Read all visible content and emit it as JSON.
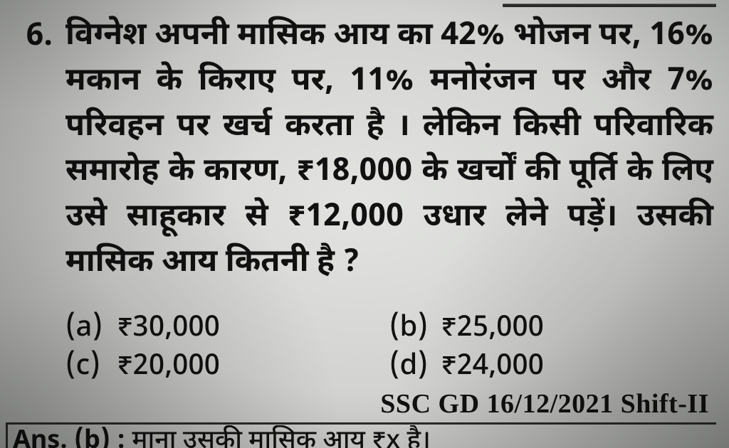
{
  "colors": {
    "text": "#111111",
    "rule": "#2a2a2a",
    "bg_center": "#e3e4e1",
    "bg_mid": "#d2d3d0",
    "bg_edge": "#9d9f9c"
  },
  "typography": {
    "question_fontsize_pt": 33,
    "question_weight": 700,
    "option_fontsize_pt": 30,
    "option_weight": 500,
    "source_fontsize_pt": 28,
    "source_weight": 700,
    "answer_fontsize_pt": 27,
    "family": "Devanagari serif / Times"
  },
  "question": {
    "number": "6.",
    "text": "विग्नेश अपनी मासिक आय का 42% भोजन पर, 16% मकान के किराए पर, 11% मनोरंजन पर और 7% परिवहन पर खर्च करता है । लेकिन किसी परिवारिक समारोह के कारण, ₹18,000 के खर्चों की पूर्ति के लिए उसे साहूकार से ₹12,000 उधार लेने पड़ें। उसकी मासिक आय कितनी है ?"
  },
  "options": {
    "a": {
      "label": "(a)",
      "value": "₹30,000"
    },
    "b": {
      "label": "(b)",
      "value": "₹25,000"
    },
    "c": {
      "label": "(c)",
      "value": "₹20,000"
    },
    "d": {
      "label": "(d)",
      "value": "₹24,000"
    }
  },
  "source": "SSC GD 16/12/2021 Shift-II",
  "answer": {
    "prefix": "Ans.",
    "key": "(b) :",
    "text": "माना उसकी मासिक आय ₹x है।"
  }
}
